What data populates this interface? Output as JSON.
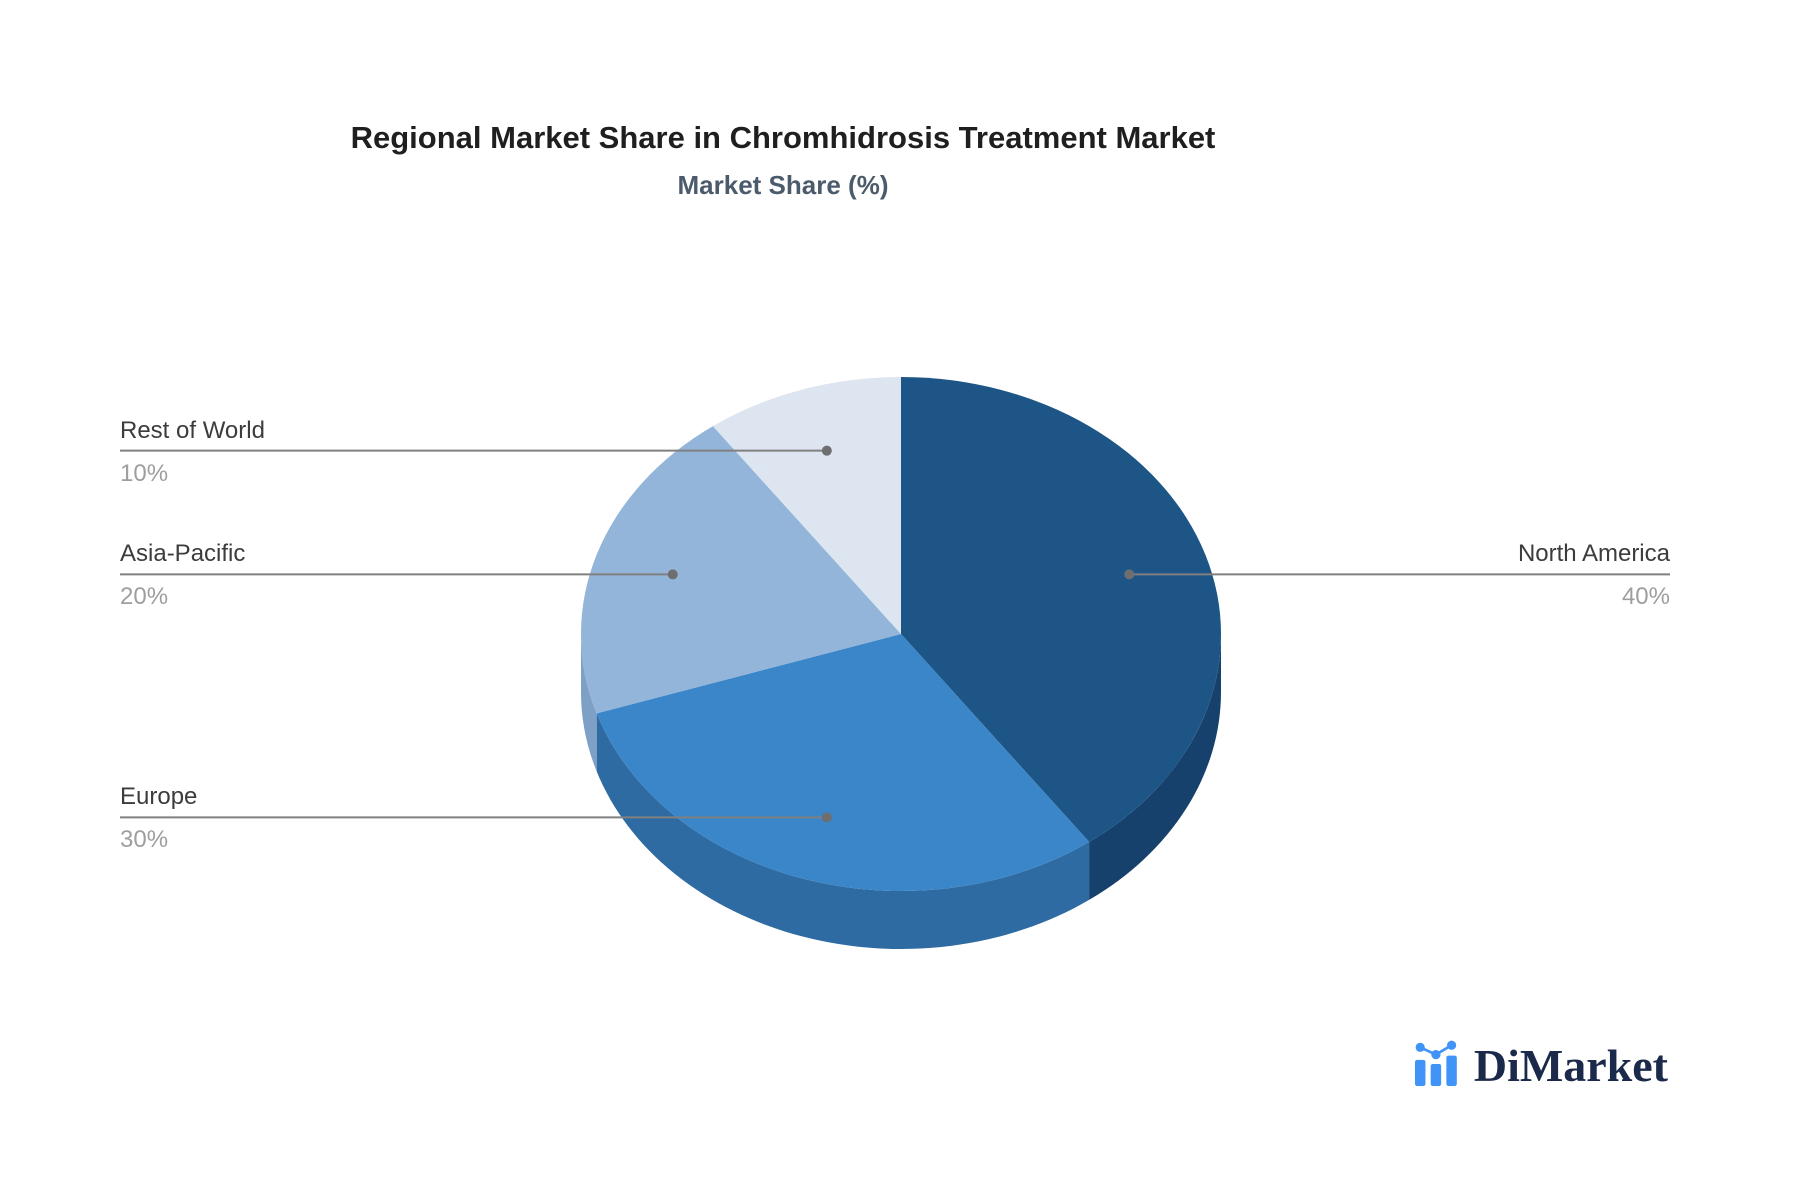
{
  "header": {
    "title": "Regional Market Share in Chromhidrosis Treatment Market",
    "subtitle": "Market Share (%)"
  },
  "chart_data": {
    "type": "pie",
    "title": "Regional Market Share in Chromhidrosis Treatment Market",
    "subtitle": "Market Share (%)",
    "unit": "%",
    "style": "3d-pie",
    "start_angle": "12-o-clock-clockwise",
    "legend_position": "none",
    "categories": [
      "North America",
      "Europe",
      "Asia-Pacific",
      "Rest of World"
    ],
    "values": [
      40,
      30,
      20,
      10
    ],
    "slices": [
      {
        "label": "North America",
        "value": 40,
        "display": "40%",
        "color": "#1C5586",
        "side_color": "#16416C",
        "label_side": "right"
      },
      {
        "label": "Europe",
        "value": 30,
        "display": "30%",
        "color": "#3A86C8",
        "side_color": "#2E6BA3",
        "label_side": "left"
      },
      {
        "label": "Asia-Pacific",
        "value": 20,
        "display": "20%",
        "color": "#93B5D9",
        "side_color": "#7EA0C6",
        "label_side": "left"
      },
      {
        "label": "Rest of World",
        "value": 10,
        "display": "10%",
        "color": "#DDE5F0",
        "side_color": "#C2CEE0",
        "label_side": "left"
      }
    ]
  },
  "branding": {
    "name": "DiMarket",
    "icon": "bar-line-chart-icon",
    "text_color": "#1B2A4A",
    "icon_color": "#4094F7"
  },
  "colors": {
    "background": "#FFFFFF",
    "title": "#1F1F1F",
    "subtitle": "#4C5B6C",
    "label_text": "#3C3C3C",
    "value_text": "#9E9E9E",
    "leader_line": "#808080",
    "leader_dot": "#6E6E6E"
  }
}
